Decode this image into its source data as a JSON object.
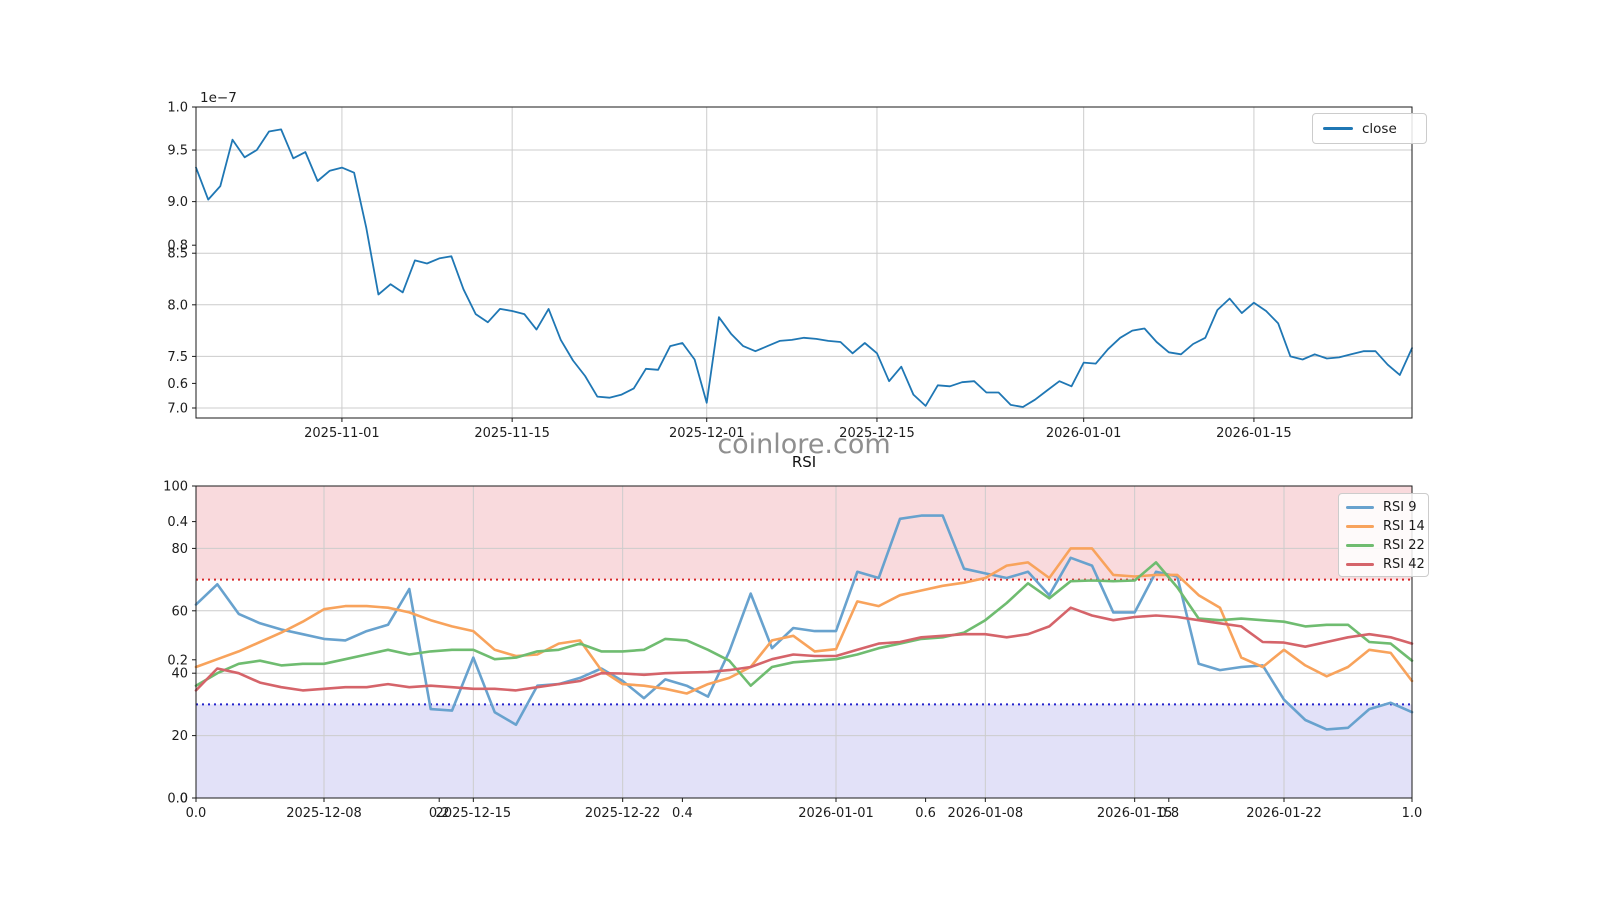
{
  "watermark": "coinlore.com",
  "overlay_axis": {
    "y_labels": [
      "1.0",
      "0.8",
      "0.6",
      "0.4",
      "0.2",
      "0.0"
    ],
    "x_labels": [
      "0.0",
      "0.2",
      "0.4",
      "0.6",
      "0.8",
      "1.0"
    ]
  },
  "chart_data": [
    {
      "type": "line",
      "panel": "price",
      "y_offset_label": "1e−7",
      "start_date": "2025-10-20",
      "x_tick_labels": [
        "2025-11-01",
        "2025-11-15",
        "2025-12-01",
        "2025-12-15",
        "2026-01-01",
        "2026-01-15"
      ],
      "x_tick_indices": [
        12,
        26,
        42,
        56,
        73,
        87
      ],
      "y_tick_labels": [
        "9.5",
        "9.0",
        "8.5",
        "8.0",
        "7.5",
        "7.0"
      ],
      "y_tick_values": [
        9.5,
        9.0,
        8.5,
        8.0,
        7.5,
        7.0
      ],
      "ylim": [
        6.903,
        9.917
      ],
      "y_unit_scale": "1e-7",
      "grid": true,
      "series": [
        {
          "name": "close",
          "color": "#1f77b4",
          "width": 1.8,
          "values": [
            9.33,
            9.02,
            9.15,
            9.6,
            9.43,
            9.5,
            9.68,
            9.7,
            9.42,
            9.48,
            9.2,
            9.3,
            9.33,
            9.28,
            8.75,
            8.1,
            8.2,
            8.12,
            8.43,
            8.4,
            8.45,
            8.47,
            8.15,
            7.91,
            7.83,
            7.96,
            7.94,
            7.91,
            7.76,
            7.96,
            7.66,
            7.46,
            7.31,
            7.11,
            7.1,
            7.13,
            7.19,
            7.38,
            7.37,
            7.6,
            7.63,
            7.47,
            7.05,
            7.88,
            7.72,
            7.6,
            7.55,
            7.6,
            7.65,
            7.66,
            7.68,
            7.67,
            7.65,
            7.64,
            7.53,
            7.63,
            7.53,
            7.26,
            7.4,
            7.13,
            7.02,
            7.22,
            7.21,
            7.25,
            7.26,
            7.15,
            7.15,
            7.03,
            7.01,
            7.08,
            7.17,
            7.26,
            7.21,
            7.44,
            7.43,
            7.57,
            7.68,
            7.75,
            7.77,
            7.64,
            7.54,
            7.52,
            7.62,
            7.68,
            7.95,
            8.06,
            7.92,
            8.02,
            7.94,
            7.82,
            7.5,
            7.47,
            7.52,
            7.48,
            7.49,
            7.52,
            7.55,
            7.55,
            7.42,
            7.32,
            7.58
          ]
        }
      ]
    },
    {
      "type": "line",
      "panel": "rsi",
      "title": "RSI",
      "start_date": "2025-12-02",
      "x_tick_labels": [
        "2025-12-08",
        "2025-12-15",
        "2025-12-22",
        "2026-01-01",
        "2026-01-08",
        "2026-01-15",
        "2026-01-22"
      ],
      "x_tick_indices": [
        6,
        13,
        20,
        30,
        37,
        44,
        51
      ],
      "y_tick_labels": [
        "100",
        "80",
        "60",
        "40",
        "20",
        "0"
      ],
      "y_tick_values": [
        100,
        80,
        60,
        40,
        20,
        0
      ],
      "ylim": [
        0,
        100
      ],
      "grid": true,
      "overbought_level": 70,
      "oversold_level": 30,
      "overbought_fill": "#f9dadd",
      "oversold_fill": "#e2e1f8",
      "overbought_line_color": "#d62728",
      "oversold_line_color": "#2323cc",
      "series": [
        {
          "name": "RSI 9",
          "color": "#68a2ce",
          "width": 2.6,
          "values": [
            62,
            68.5,
            59,
            56,
            54,
            52.5,
            51,
            50.5,
            53.5,
            55.5,
            67,
            28.5,
            28,
            45,
            27.5,
            23.5,
            36,
            36.5,
            38.5,
            41.5,
            37.5,
            32,
            38,
            36,
            32.5,
            47,
            65.5,
            48,
            54.5,
            53.5,
            53.5,
            72.5,
            70.5,
            89.5,
            90.5,
            90.5,
            73.5,
            72,
            70.5,
            72.5,
            65,
            77,
            74.5,
            59.5,
            59.5,
            72.5,
            71,
            43,
            41,
            42,
            42.5,
            31.5,
            25,
            22,
            22.5,
            28.5,
            30.5,
            27.5
          ]
        },
        {
          "name": "RSI 14",
          "color": "#f8a35c",
          "width": 2.6,
          "values": [
            42,
            44.5,
            47,
            50,
            53,
            56.5,
            60.5,
            61.5,
            61.5,
            61,
            59.5,
            57,
            55,
            53.5,
            47.5,
            45.5,
            46,
            49.5,
            50.5,
            41,
            36.5,
            36,
            35,
            33.5,
            36.5,
            38.5,
            42,
            50.5,
            52,
            47,
            47.7,
            63,
            61.5,
            65,
            66.5,
            68,
            69,
            70.5,
            74.5,
            75.5,
            70.5,
            80,
            80,
            71.5,
            71,
            71.5,
            71.5,
            65,
            61,
            45,
            42,
            47.5,
            42.5,
            39,
            42,
            47.5,
            46.5,
            37.5
          ]
        },
        {
          "name": "RSI 22",
          "color": "#6fbc70",
          "width": 2.6,
          "values": [
            36,
            40,
            43,
            44,
            42.5,
            43,
            43,
            44.5,
            46,
            47.5,
            46,
            47,
            47.5,
            47.5,
            44.5,
            45,
            47,
            47.5,
            49.5,
            47,
            47,
            47.5,
            51,
            50.5,
            47.5,
            44,
            36,
            42,
            43.5,
            44,
            44.5,
            46,
            48,
            49.5,
            51,
            51.5,
            53,
            57,
            62.5,
            68.8,
            64,
            69.5,
            69.7,
            69.5,
            69.7,
            75.5,
            67.5,
            57.5,
            57,
            57.5,
            57,
            56.5,
            55,
            55.5,
            55.5,
            50,
            49.5,
            44
          ]
        },
        {
          "name": "RSI 42",
          "color": "#d5646a",
          "width": 2.6,
          "values": [
            34.5,
            41.5,
            40,
            37,
            35.5,
            34.5,
            35,
            35.5,
            35.5,
            36.5,
            35.5,
            36,
            35.5,
            35,
            35,
            34.5,
            35.5,
            36.5,
            37.5,
            40,
            39.9,
            39.5,
            40,
            40.2,
            40.4,
            41,
            42,
            44.5,
            46,
            45.5,
            45.5,
            47.5,
            49.5,
            50,
            51.5,
            52,
            52.5,
            52.5,
            51.5,
            52.5,
            55,
            61,
            58.5,
            57,
            58,
            58.5,
            58,
            57,
            56,
            55,
            50,
            49.8,
            48.5,
            50,
            51.5,
            52.5,
            51.5,
            49.5
          ]
        }
      ]
    }
  ]
}
